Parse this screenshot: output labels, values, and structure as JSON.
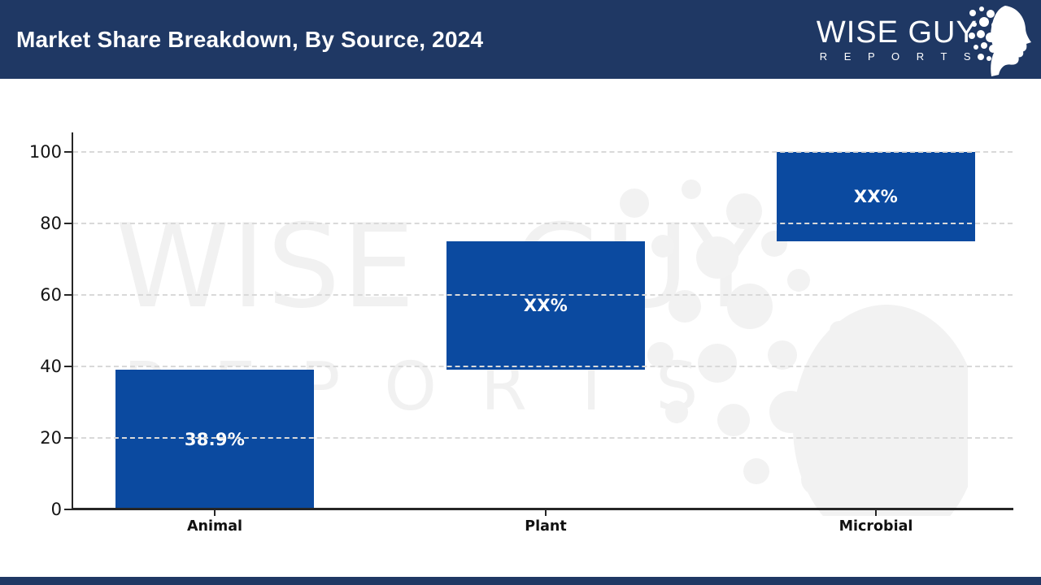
{
  "header": {
    "title": "Market Share Breakdown, By Source, 2024",
    "logo": {
      "wordmark": "WISE GUY",
      "tagline": "R E P O R T S",
      "face_icon": "dotted-head-profile"
    }
  },
  "watermark": {
    "line1": "WISE GUY",
    "line2": "R E P O R T S",
    "face_ghost": "dotted-head-profile"
  },
  "colors": {
    "header_bg": "#1f3864",
    "bar": "#0b4aa0",
    "grid": "#d9d9d9",
    "axis": "#262626",
    "watermark": "#f1f1f1",
    "title_text": "#ffffff",
    "bar_label_text": "#ffffff"
  },
  "chart_data": {
    "type": "bar",
    "subtype": "waterfall-floating-bars",
    "title": "Market Share Breakdown, By Source, 2024",
    "categories": [
      "Animal",
      "Plant",
      "Microbial"
    ],
    "segments": [
      {
        "category": "Animal",
        "start": 0,
        "end": 38.9,
        "label": "38.9%"
      },
      {
        "category": "Plant",
        "start": 38.9,
        "end": 75,
        "label": "XX%"
      },
      {
        "category": "Microbial",
        "start": 75,
        "end": 100,
        "label": "XX%"
      }
    ],
    "xlabel": "",
    "ylabel": "",
    "ylim": [
      0,
      100
    ],
    "yticks": [
      0,
      20,
      40,
      60,
      80,
      100
    ],
    "grid": "horizontal-dashed",
    "legend": "none",
    "bar_value_labels_inside": true
  }
}
